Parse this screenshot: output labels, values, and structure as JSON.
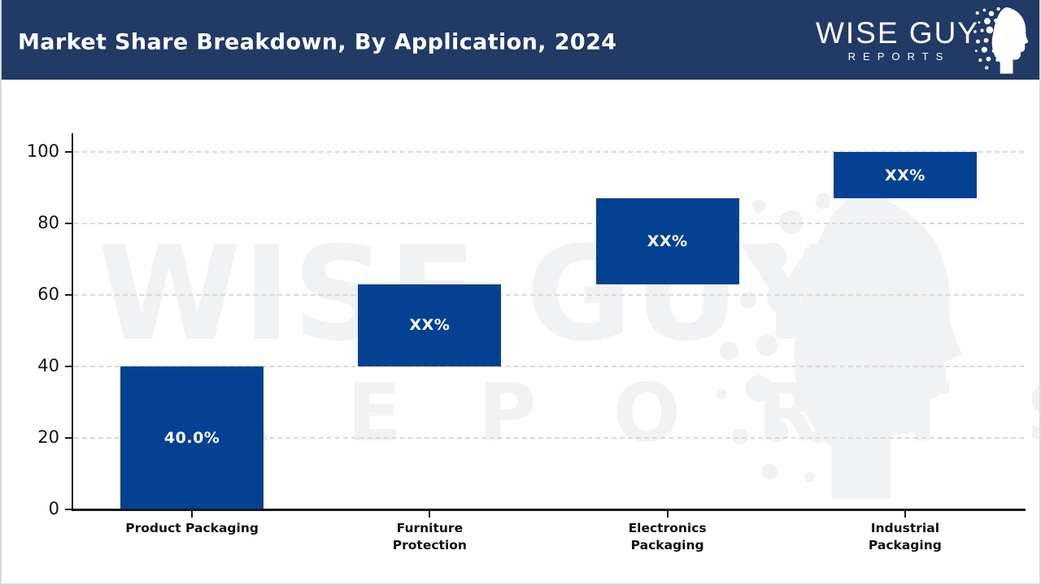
{
  "header": {
    "title": "Market Share Breakdown, By Application, 2024",
    "logo": {
      "line1": "WISE GUY",
      "line2": "REPORTS",
      "icon": "dotted-head-icon"
    }
  },
  "watermark": {
    "line1": "WISE GUY",
    "line2": "R E P O R T S",
    "icon": "dotted-head-watermark-icon"
  },
  "colors": {
    "header_bg": "#213A66",
    "bar": "#054192",
    "bar_label": "#ffffff",
    "grid": "#d9d9d9",
    "axis": "#1a1a1a",
    "tick_text": "#111111",
    "watermark": "#f1f2f4"
  },
  "chart_data": {
    "type": "bar",
    "subtype": "waterfall",
    "title": "Market Share Breakdown, By Application, 2024",
    "xlabel": "",
    "ylabel": "",
    "categories": [
      "Product Packaging",
      "Furniture\nProtection",
      "Electronics\nPackaging",
      "Industrial\nPackaging"
    ],
    "bars": [
      {
        "start": 0,
        "end": 40,
        "label": "40.0%"
      },
      {
        "start": 40,
        "end": 63,
        "label": "XX%"
      },
      {
        "start": 63,
        "end": 87,
        "label": "XX%"
      },
      {
        "start": 87,
        "end": 100,
        "label": "XX%"
      }
    ],
    "ylim": [
      0,
      100
    ],
    "yticks": [
      0,
      20,
      40,
      60,
      80,
      100
    ],
    "grid": "horizontal-dashed",
    "legend": null
  }
}
